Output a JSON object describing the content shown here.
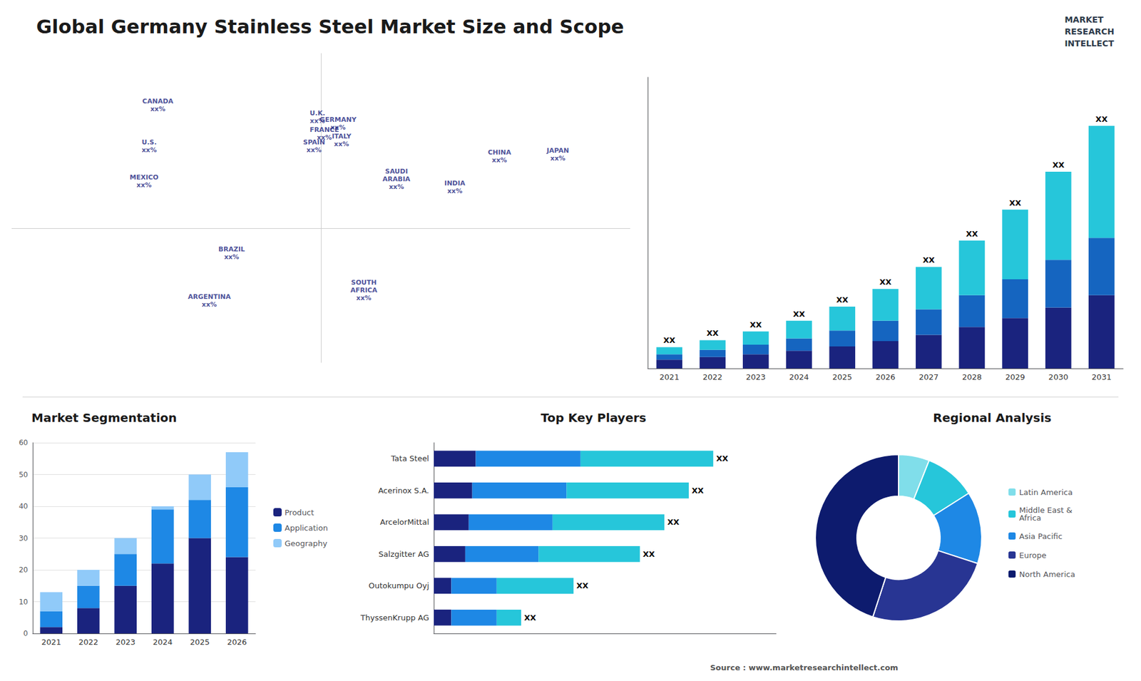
{
  "title": "Global Germany Stainless Steel Market Size and Scope",
  "annotations": [
    "MARKET\nRESEARCH\nINTELLECT",
    "Source : www.marketresearchintellect.com"
  ],
  "chart_data": [
    {
      "type": "map",
      "xlim": [
        -180,
        180
      ],
      "ylim": [
        -65,
        85
      ],
      "tick_labels": false,
      "annotations": [
        {
          "text": "U.S.\nxx%",
          "x": -100,
          "y": 40
        },
        {
          "text": "CANADA\nxx%",
          "x": -95,
          "y": 60
        },
        {
          "text": "MEXICO\nxx%",
          "x": -103,
          "y": 23
        },
        {
          "text": "BRAZIL\nxx%",
          "x": -52,
          "y": -12
        },
        {
          "text": "ARGENTINA\nxx%",
          "x": -65,
          "y": -35
        },
        {
          "text": "U.K.\nxx%",
          "x": -2,
          "y": 54
        },
        {
          "text": "FRANCE\nxx%",
          "x": 2,
          "y": 46
        },
        {
          "text": "SPAIN\nxx%",
          "x": -4,
          "y": 40
        },
        {
          "text": "GERMANY\nxx%",
          "x": 10,
          "y": 51
        },
        {
          "text": "ITALY\nxx%",
          "x": 12,
          "y": 43
        },
        {
          "text": "SAUDI\nARABIA\nxx%",
          "x": 44,
          "y": 24
        },
        {
          "text": "SOUTH\nAFRICA\nxx%",
          "x": 25,
          "y": -30
        },
        {
          "text": "CHINA\nxx%",
          "x": 104,
          "y": 35
        },
        {
          "text": "INDIA\nxx%",
          "x": 78,
          "y": 20
        },
        {
          "text": "JAPAN\nxx%",
          "x": 138,
          "y": 36
        }
      ]
    },
    {
      "type": "bar",
      "stacked": true,
      "categories": [
        "2021",
        "2022",
        "2023",
        "2024",
        "2025",
        "2026",
        "2027",
        "2028",
        "2029",
        "2030",
        "2031"
      ],
      "series": [
        {
          "color": "#1a237e",
          "values": [
            1.0,
            1.3,
            1.6,
            2.0,
            2.5,
            3.1,
            3.8,
            4.7,
            5.7,
            6.9,
            8.3
          ]
        },
        {
          "color": "#1565c0",
          "values": [
            0.6,
            0.8,
            1.1,
            1.4,
            1.8,
            2.3,
            2.9,
            3.6,
            4.4,
            5.4,
            6.5
          ]
        },
        {
          "color": "#26c6da",
          "values": [
            0.8,
            1.1,
            1.5,
            2.0,
            2.7,
            3.6,
            4.8,
            6.2,
            7.9,
            10.0,
            12.7
          ],
          "value_labels": [
            "XX",
            "XX",
            "XX",
            "XX",
            "XX",
            "XX",
            "XX",
            "XX",
            "XX",
            "XX",
            "XX"
          ]
        }
      ],
      "ylim": [
        0,
        33
      ],
      "tick_labels": "x",
      "grid": false
    },
    {
      "type": "bar",
      "title": "Market Segmentation",
      "stacked": true,
      "categories": [
        "2021",
        "2022",
        "2023",
        "2024",
        "2025",
        "2026"
      ],
      "series": [
        {
          "name": "Product",
          "color": "#1a237e",
          "values": [
            2,
            8,
            15,
            22,
            30,
            24
          ]
        },
        {
          "name": "Application",
          "color": "#1e88e5",
          "values": [
            5,
            7,
            10,
            17,
            12,
            22
          ]
        },
        {
          "name": "Geography",
          "color": "#90caf9",
          "values": [
            6,
            5,
            5,
            1,
            8,
            11
          ]
        }
      ],
      "ylim": [
        0,
        60
      ],
      "yticks": [
        0,
        10,
        20,
        30,
        40,
        50,
        60
      ],
      "grid": true,
      "legend": "right"
    },
    {
      "type": "bar",
      "title": "Top Key Players",
      "orientation": "horizontal",
      "stacked": true,
      "categories": [
        "Tata Steel",
        "Acerinox S.A.",
        "ArcelorMittal",
        "Salzgitter AG",
        "Outokumpu Oyj",
        "ThyssenKrupp AG"
      ],
      "series": [
        {
          "color": "#1a237e",
          "values": [
            1.2,
            1.1,
            1.0,
            0.9,
            0.5,
            0.5
          ]
        },
        {
          "color": "#1e88e5",
          "values": [
            3.0,
            2.7,
            2.4,
            2.1,
            1.3,
            1.3
          ]
        },
        {
          "color": "#26c6da",
          "values": [
            3.8,
            3.5,
            3.2,
            2.9,
            2.2,
            0.7
          ],
          "value_labels": [
            "XX",
            "XX",
            "XX",
            "XX",
            "XX",
            "XX"
          ]
        }
      ],
      "xlim": [
        0,
        9.8
      ],
      "tick_labels": "y",
      "grid": false
    },
    {
      "type": "pie",
      "title": "Regional Analysis",
      "categories": [
        "Latin America",
        "Middle East &\nAfrica",
        "Asia Pacific",
        "Europe",
        "North America"
      ],
      "values": [
        6,
        10,
        14,
        25,
        45
      ],
      "colors": [
        "#80deea",
        "#26c6da",
        "#1e88e5",
        "#283593",
        "#0d1b6e"
      ],
      "legend": "right"
    }
  ]
}
